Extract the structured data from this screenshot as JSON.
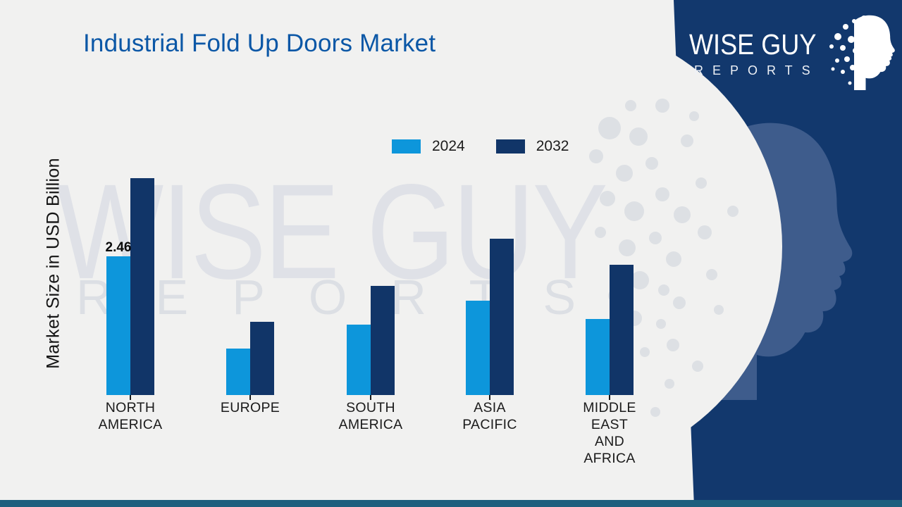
{
  "page": {
    "background_color": "#f1f1f0",
    "bottom_strip_color": "#1d5f7e"
  },
  "header": {
    "title": "Industrial Fold Up Doors Market",
    "title_color": "#0b57a6"
  },
  "logo": {
    "name": "WISE GUY",
    "sub": "REPORTS",
    "panel_color": "#12386d",
    "face_silhouette_color": "#3e5c8c"
  },
  "watermark": {
    "line1": "WISE GUY",
    "line2": "REPORTS"
  },
  "chart_data": {
    "type": "bar",
    "title": "Industrial Fold Up Doors Market",
    "xlabel": "",
    "ylabel": "Market Size in USD Billion",
    "categories": [
      "NORTH AMERICA",
      "EUROPE",
      "SOUTH AMERICA",
      "ASIA PACIFIC",
      "MIDDLE EAST AND AFRICA"
    ],
    "category_lines": [
      [
        "NORTH",
        "AMERICA"
      ],
      [
        "EUROPE"
      ],
      [
        "SOUTH",
        "AMERICA"
      ],
      [
        "ASIA",
        "PACIFIC"
      ],
      [
        "MIDDLE",
        "EAST",
        "AND",
        "AFRICA"
      ]
    ],
    "series": [
      {
        "name": "2024",
        "color": "#0d96db",
        "values": [
          2.46,
          0.82,
          1.25,
          1.68,
          1.35
        ]
      },
      {
        "name": "2032",
        "color": "#113568",
        "values": [
          3.85,
          1.3,
          1.94,
          2.77,
          2.31
        ]
      }
    ],
    "bar_labels": [
      {
        "category_index": 0,
        "series_index": 0,
        "text": "2.46"
      }
    ],
    "ylim": [
      0,
      4.5
    ],
    "grid": false,
    "legend_position": "top-center"
  }
}
